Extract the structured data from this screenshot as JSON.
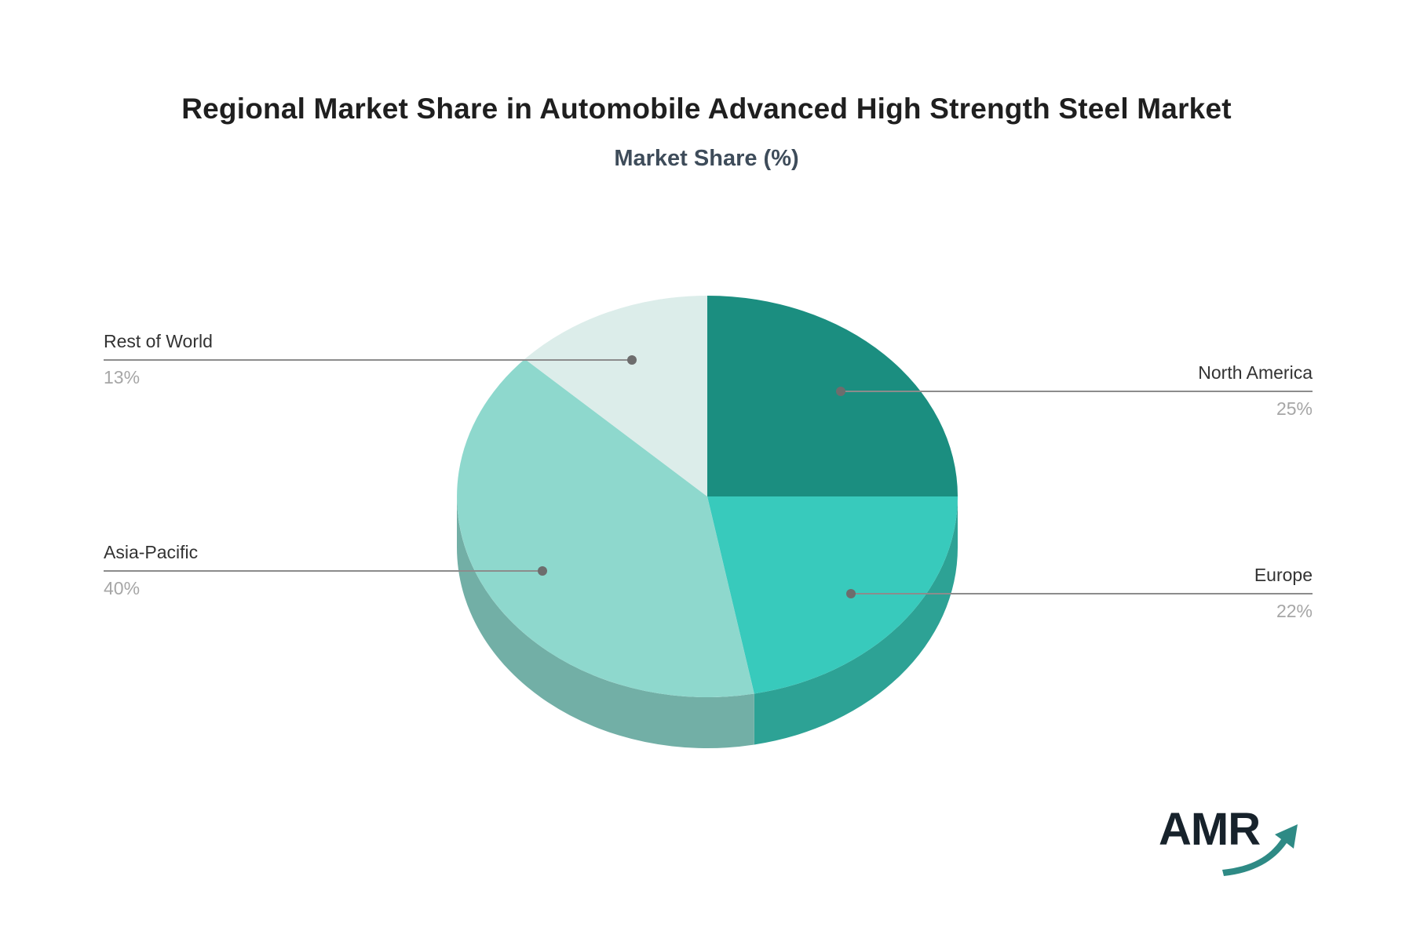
{
  "title": "Regional Market Share in Automobile Advanced High Strength Steel Market",
  "subtitle": "Market Share (%)",
  "chart_data": {
    "type": "pie",
    "style": "3d",
    "title": "Regional Market Share in Automobile Advanced High Strength Steel Market",
    "subtitle": "Market Share (%)",
    "unit": "%",
    "legend_position": "callout-labels",
    "start_angle_deg": 0,
    "direction": "clockwise",
    "categories": [
      "North America",
      "Europe",
      "Asia-Pacific",
      "Rest of World"
    ],
    "values": [
      25,
      22,
      40,
      13
    ],
    "slices": [
      {
        "label": "North America",
        "value": 25,
        "pct_label": "25%",
        "color": "#1b8e80",
        "side_color": "#1b8e80"
      },
      {
        "label": "Europe",
        "value": 22,
        "pct_label": "22%",
        "color": "#38cabc",
        "side_color": "#2da295"
      },
      {
        "label": "Asia-Pacific",
        "value": 40,
        "pct_label": "40%",
        "color": "#8ed8cd",
        "side_color": "#72afa6"
      },
      {
        "label": "Rest of World",
        "value": 13,
        "pct_label": "13%",
        "color": "#dcedea",
        "side_color": "#b8d6d0"
      }
    ],
    "leader_line_color": "#8c8c8c",
    "label_color": "#333333",
    "value_color": "#a6a6a6"
  },
  "logo": {
    "text": "AMR",
    "accent_color": "#2e8a85"
  }
}
